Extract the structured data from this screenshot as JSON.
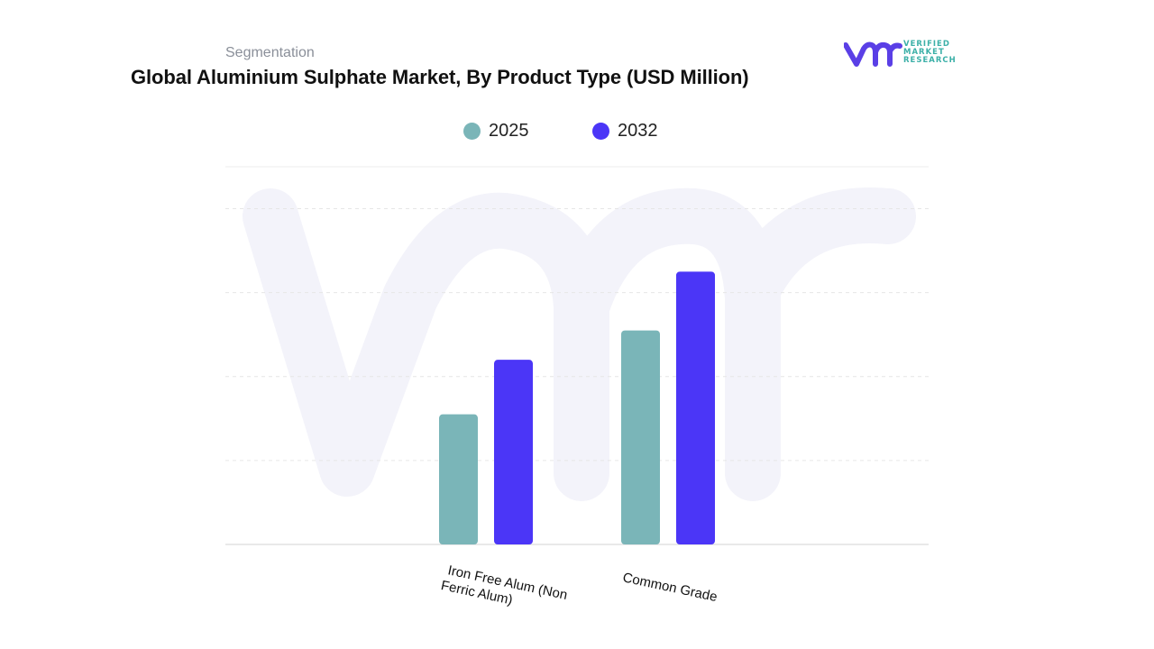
{
  "header": {
    "segmentation_label": "Segmentation",
    "title": "Global Aluminium Sulphate Market, By Product Type (USD Million)"
  },
  "logo": {
    "line1": "VERIFIED",
    "line2": "MARKET",
    "line3": "RESEARCH",
    "brand_color": "#5a3fe6",
    "text_color": "#3cb0a8"
  },
  "chart_data": {
    "type": "bar",
    "categories": [
      "Iron Free Alum (Non Ferric Alum)",
      "Common Grade"
    ],
    "category_label_lines": [
      [
        "Iron Free Alum (Non",
        "Ferric Alum)"
      ],
      [
        "Common Grade"
      ]
    ],
    "series": [
      {
        "name": "2025",
        "values": [
          31,
          51
        ],
        "color": "#7ab5b8"
      },
      {
        "name": "2032",
        "values": [
          44,
          65
        ],
        "color": "#4b36f7"
      }
    ],
    "ylim": [
      0,
      90
    ],
    "grid": true,
    "legend_position": "top-center",
    "xlabel": "",
    "ylabel": ""
  }
}
